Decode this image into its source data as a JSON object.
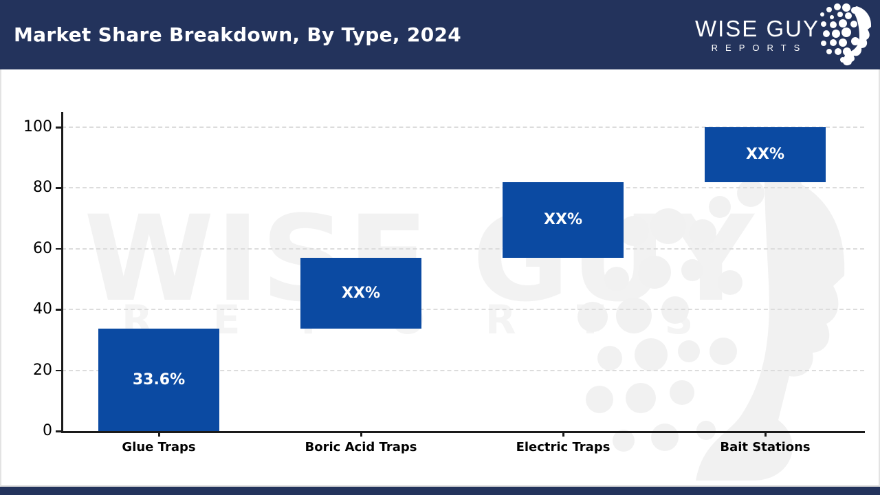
{
  "header": {
    "title": "Market Share Breakdown, By Type, 2024",
    "logo_line1": "WISE GUY",
    "logo_line2": "REPORTS",
    "bg_color": "#23335c"
  },
  "watermark": {
    "line1": "WISE GUY",
    "line2": "R E P O R T S"
  },
  "chart_data": {
    "type": "bar",
    "subtype": "waterfall",
    "title": "Market Share Breakdown, By Type, 2024",
    "categories": [
      "Glue Traps",
      "Boric Acid Traps",
      "Electric Traps",
      "Bait Stations"
    ],
    "segments": [
      {
        "category": "Glue Traps",
        "start": 0,
        "end": 33.6,
        "label": "33.6%"
      },
      {
        "category": "Boric Acid Traps",
        "start": 33.6,
        "end": 57,
        "label": "XX%"
      },
      {
        "category": "Electric Traps",
        "start": 57,
        "end": 82,
        "label": "XX%"
      },
      {
        "category": "Bait Stations",
        "start": 82,
        "end": 100,
        "label": "XX%"
      }
    ],
    "ylim": [
      0,
      100
    ],
    "yticks": [
      0,
      20,
      40,
      60,
      80,
      100
    ],
    "xlabel": "",
    "ylabel": "",
    "grid": "horizontal-dashed",
    "legend": "none",
    "bar_color": "#0b4aa2",
    "bar_label_color": "#ffffff"
  }
}
